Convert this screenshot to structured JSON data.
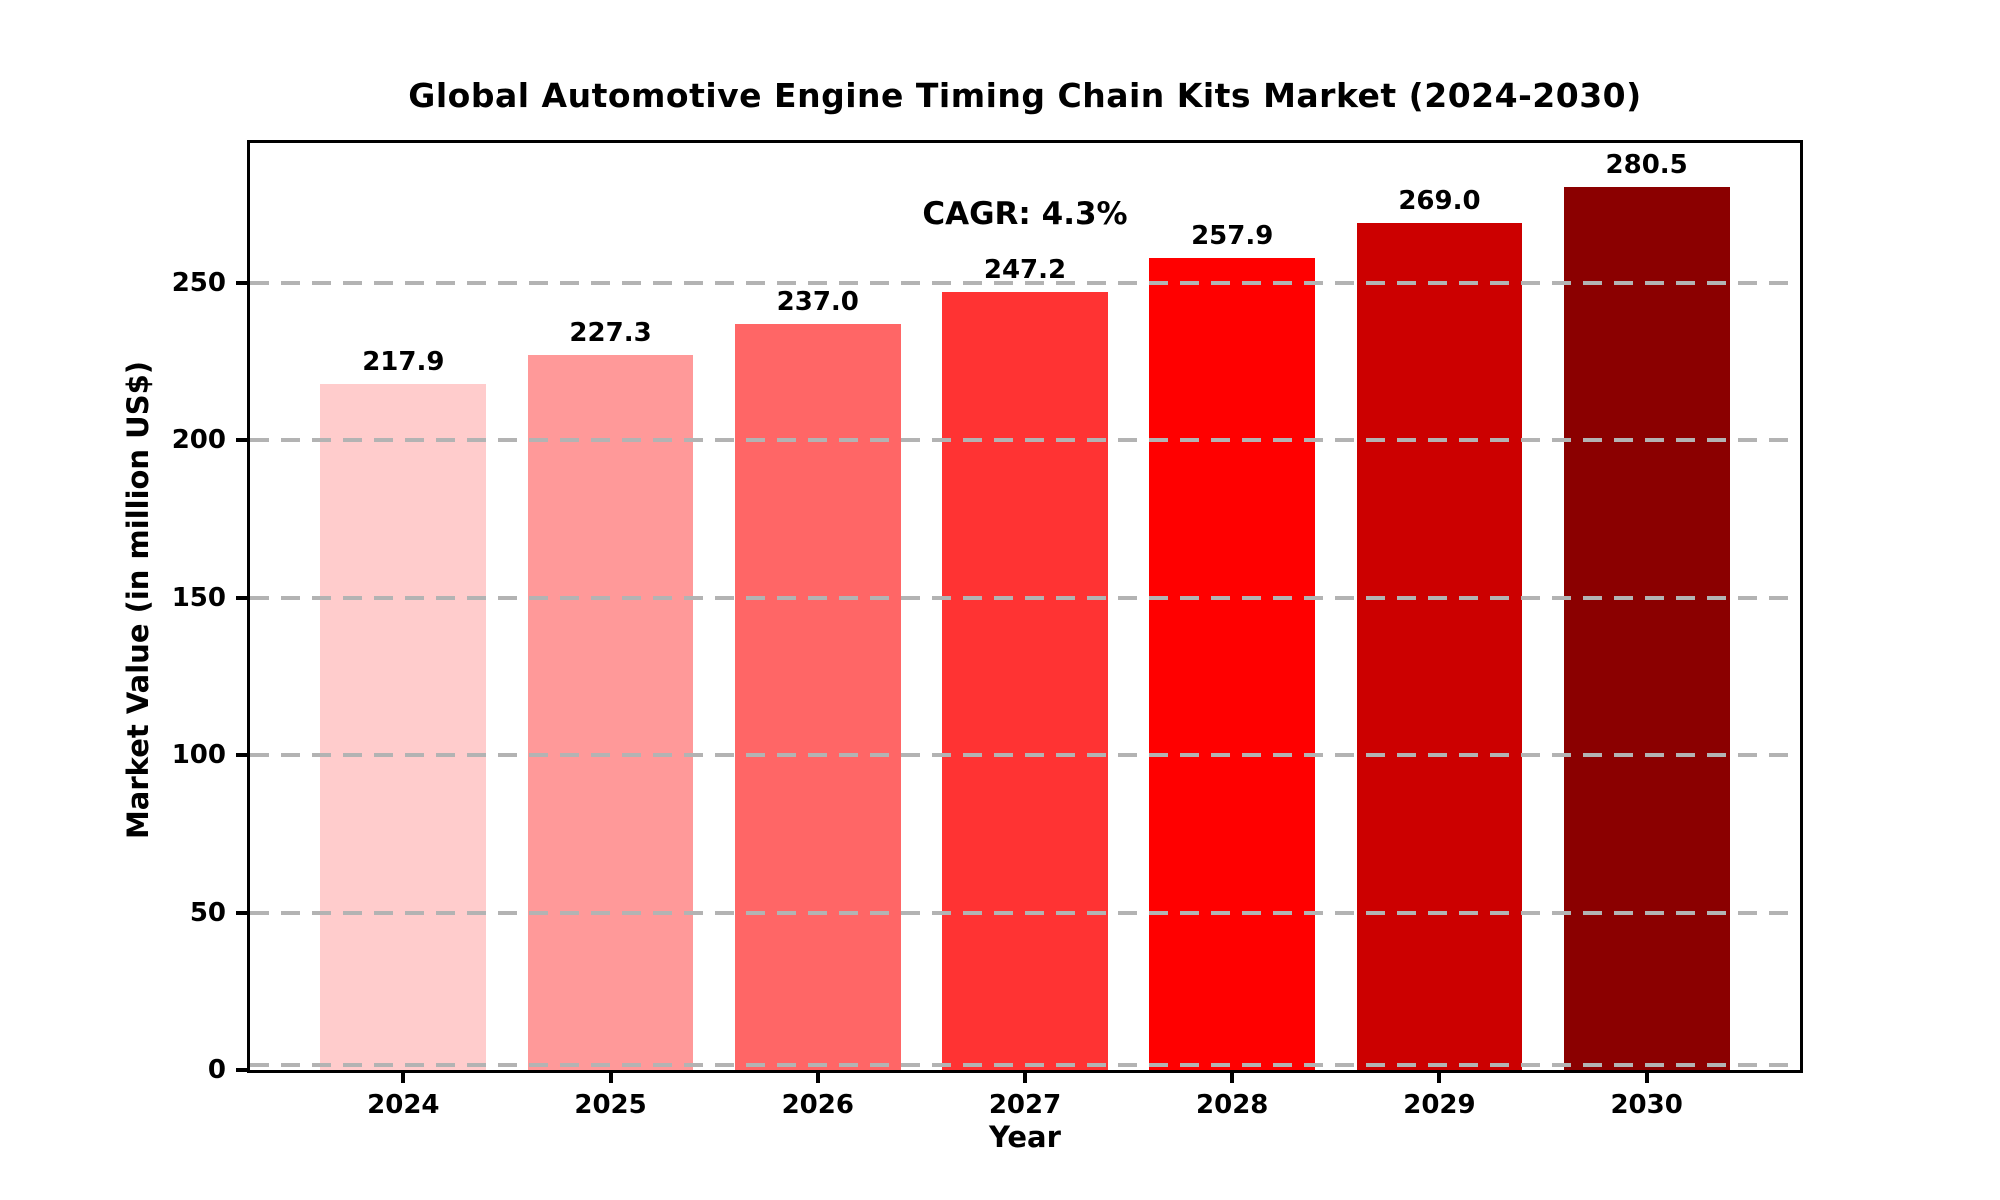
{
  "chart_data": {
    "type": "bar",
    "title": "Global Automotive Engine Timing Chain Kits Market (2024-2030)",
    "annotation": "CAGR: 4.3%",
    "xlabel": "Year",
    "ylabel": "Market Value (in million US$)",
    "categories": [
      "2024",
      "2025",
      "2026",
      "2027",
      "2028",
      "2029",
      "2030"
    ],
    "values": [
      217.9,
      227.3,
      237.0,
      247.2,
      257.9,
      269.0,
      280.5
    ],
    "bar_labels": [
      "217.9",
      "227.3",
      "237.0",
      "247.2",
      "257.9",
      "269.0",
      "280.5"
    ],
    "bar_colors": [
      "#ffcccc",
      "#ff9999",
      "#ff6666",
      "#ff3333",
      "#ff0000",
      "#cc0000",
      "#8b0000"
    ],
    "yticks": [
      0,
      50,
      100,
      150,
      200,
      250
    ],
    "ylim": [
      0,
      294.5
    ],
    "xlim_units": [
      -0.74,
      6.74
    ],
    "bar_width_units": 0.8,
    "grid": {
      "axis": "y",
      "style": "dashed",
      "color": "#b3b3b3",
      "above_bars": true
    },
    "legend": "none",
    "text_color": "#000000",
    "background_color": "#ffffff"
  }
}
